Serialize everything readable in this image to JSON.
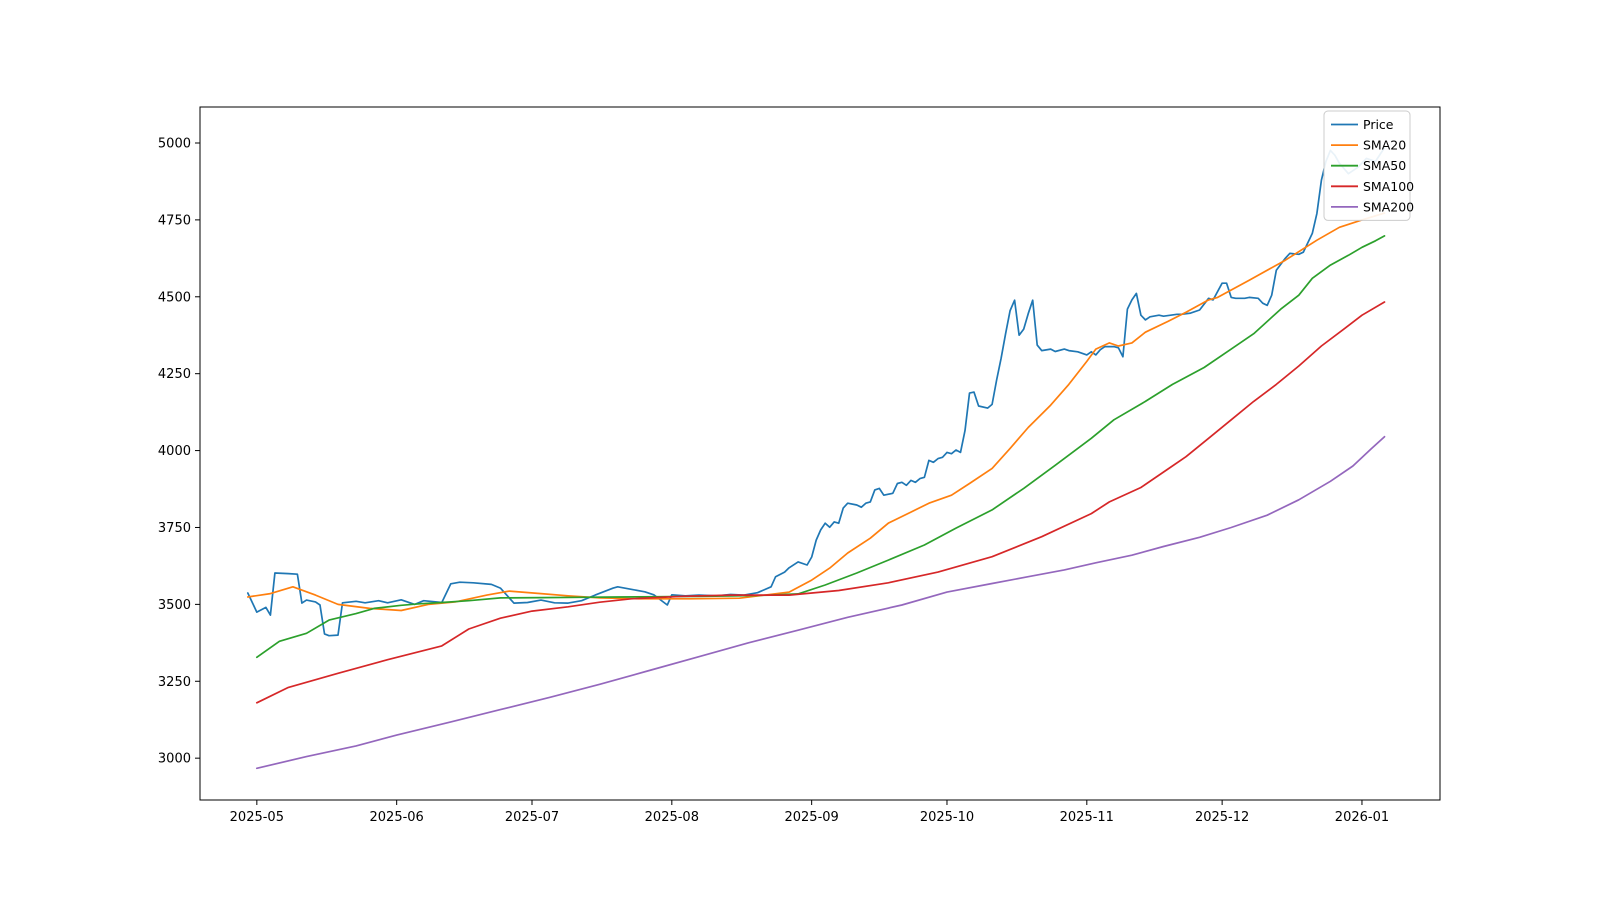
{
  "figure": {
    "background": "#ffffff"
  },
  "chart_data": {
    "type": "line",
    "title": "",
    "xlabel": "",
    "ylabel": "",
    "grid": false,
    "x_unit": "days since 2025-05-01 (day 0 = 2025-05-01)",
    "xlim_days": [
      -12.6,
      262.3
    ],
    "ylim": [
      2864,
      5117
    ],
    "x_ticks": [
      {
        "label": "2025-05",
        "day": 0
      },
      {
        "label": "2025-06",
        "day": 31
      },
      {
        "label": "2025-07",
        "day": 61
      },
      {
        "label": "2025-08",
        "day": 92
      },
      {
        "label": "2025-09",
        "day": 123
      },
      {
        "label": "2025-10",
        "day": 153
      },
      {
        "label": "2025-11",
        "day": 184
      },
      {
        "label": "2025-12",
        "day": 214
      },
      {
        "label": "2026-01",
        "day": 245
      }
    ],
    "y_ticks": [
      3000,
      3250,
      3500,
      3750,
      4000,
      4250,
      4500,
      4750,
      5000
    ],
    "legend": {
      "position": "upper right",
      "entries": [
        "Price",
        "SMA20",
        "SMA50",
        "SMA100",
        "SMA200"
      ]
    },
    "series": [
      {
        "name": "Price",
        "color": "#1f77b4",
        "points": [
          [
            -2,
            3537
          ],
          [
            0,
            3475
          ],
          [
            2,
            3490
          ],
          [
            3,
            3465
          ],
          [
            4,
            3602
          ],
          [
            7,
            3600
          ],
          [
            9,
            3598
          ],
          [
            10,
            3504
          ],
          [
            11,
            3514
          ],
          [
            13,
            3508
          ],
          [
            14,
            3498
          ],
          [
            15,
            3404
          ],
          [
            16,
            3398
          ],
          [
            18,
            3400
          ],
          [
            19,
            3505
          ],
          [
            22,
            3510
          ],
          [
            24,
            3505
          ],
          [
            27,
            3512
          ],
          [
            29,
            3505
          ],
          [
            32,
            3515
          ],
          [
            35,
            3500
          ],
          [
            37,
            3512
          ],
          [
            41,
            3506
          ],
          [
            43,
            3567
          ],
          [
            45,
            3572
          ],
          [
            48,
            3570
          ],
          [
            52,
            3565
          ],
          [
            54,
            3553
          ],
          [
            57,
            3504
          ],
          [
            60,
            3506
          ],
          [
            63,
            3514
          ],
          [
            66,
            3505
          ],
          [
            69,
            3504
          ],
          [
            72,
            3512
          ],
          [
            75,
            3530
          ],
          [
            79,
            3553
          ],
          [
            80,
            3557
          ],
          [
            83,
            3549
          ],
          [
            86,
            3541
          ],
          [
            88,
            3531
          ],
          [
            91,
            3498
          ],
          [
            92,
            3531
          ],
          [
            95,
            3528
          ],
          [
            98,
            3530
          ],
          [
            102,
            3528
          ],
          [
            105,
            3532
          ],
          [
            108,
            3530
          ],
          [
            111,
            3538
          ],
          [
            114,
            3557
          ],
          [
            115,
            3590
          ],
          [
            117,
            3605
          ],
          [
            118,
            3619
          ],
          [
            120,
            3638
          ],
          [
            122,
            3628
          ],
          [
            123,
            3654
          ],
          [
            124,
            3709
          ],
          [
            125,
            3742
          ],
          [
            126,
            3764
          ],
          [
            127,
            3751
          ],
          [
            128,
            3768
          ],
          [
            129,
            3764
          ],
          [
            130,
            3813
          ],
          [
            131,
            3829
          ],
          [
            133,
            3823
          ],
          [
            134,
            3816
          ],
          [
            135,
            3829
          ],
          [
            136,
            3833
          ],
          [
            137,
            3872
          ],
          [
            138,
            3877
          ],
          [
            139,
            3855
          ],
          [
            141,
            3861
          ],
          [
            142,
            3893
          ],
          [
            143,
            3897
          ],
          [
            144,
            3887
          ],
          [
            145,
            3903
          ],
          [
            146,
            3897
          ],
          [
            147,
            3909
          ],
          [
            148,
            3913
          ],
          [
            149,
            3968
          ],
          [
            150,
            3962
          ],
          [
            151,
            3974
          ],
          [
            152,
            3978
          ],
          [
            153,
            3994
          ],
          [
            154,
            3990
          ],
          [
            155,
            4002
          ],
          [
            156,
            3994
          ],
          [
            157,
            4065
          ],
          [
            158,
            4187
          ],
          [
            159,
            4190
          ],
          [
            160,
            4145
          ],
          [
            162,
            4138
          ],
          [
            163,
            4150
          ],
          [
            164,
            4229
          ],
          [
            165,
            4300
          ],
          [
            166,
            4380
          ],
          [
            167,
            4455
          ],
          [
            168,
            4489
          ],
          [
            169,
            4375
          ],
          [
            170,
            4395
          ],
          [
            171,
            4445
          ],
          [
            172,
            4489
          ],
          [
            173,
            4343
          ],
          [
            174,
            4325
          ],
          [
            176,
            4330
          ],
          [
            177,
            4322
          ],
          [
            179,
            4330
          ],
          [
            180,
            4325
          ],
          [
            182,
            4321
          ],
          [
            184,
            4311
          ],
          [
            185,
            4321
          ],
          [
            186,
            4311
          ],
          [
            187,
            4328
          ],
          [
            188,
            4338
          ],
          [
            190,
            4338
          ],
          [
            191,
            4334
          ],
          [
            192,
            4305
          ],
          [
            193,
            4460
          ],
          [
            194,
            4490
          ],
          [
            195,
            4511
          ],
          [
            196,
            4440
          ],
          [
            197,
            4425
          ],
          [
            198,
            4435
          ],
          [
            200,
            4440
          ],
          [
            201,
            4437
          ],
          [
            204,
            4443
          ],
          [
            205,
            4443
          ],
          [
            207,
            4447
          ],
          [
            209,
            4457
          ],
          [
            211,
            4495
          ],
          [
            212,
            4490
          ],
          [
            214,
            4544
          ],
          [
            215,
            4544
          ],
          [
            216,
            4498
          ],
          [
            217,
            4495
          ],
          [
            219,
            4495
          ],
          [
            220,
            4498
          ],
          [
            222,
            4495
          ],
          [
            223,
            4479
          ],
          [
            224,
            4472
          ],
          [
            225,
            4505
          ],
          [
            226,
            4586
          ],
          [
            228,
            4625
          ],
          [
            229,
            4641
          ],
          [
            231,
            4638
          ],
          [
            232,
            4645
          ],
          [
            234,
            4706
          ],
          [
            235,
            4771
          ],
          [
            236,
            4879
          ],
          [
            237,
            4940
          ],
          [
            238,
            4976
          ],
          [
            239,
            4960
          ],
          [
            240,
            4934
          ],
          [
            242,
            4900
          ],
          [
            244,
            4920
          ],
          [
            246,
            4950
          ],
          [
            248,
            4940
          ],
          [
            250,
            4985
          ]
        ]
      },
      {
        "name": "SMA20",
        "color": "#ff7f0e",
        "points": [
          [
            -2,
            3524
          ],
          [
            3,
            3535
          ],
          [
            8,
            3557
          ],
          [
            13,
            3530
          ],
          [
            18,
            3500
          ],
          [
            25,
            3487
          ],
          [
            32,
            3480
          ],
          [
            38,
            3500
          ],
          [
            44,
            3508
          ],
          [
            51,
            3530
          ],
          [
            56,
            3543
          ],
          [
            63,
            3535
          ],
          [
            69,
            3528
          ],
          [
            76,
            3521
          ],
          [
            85,
            3518
          ],
          [
            96,
            3518
          ],
          [
            107,
            3520
          ],
          [
            118,
            3540
          ],
          [
            123,
            3579
          ],
          [
            127,
            3618
          ],
          [
            131,
            3667
          ],
          [
            136,
            3715
          ],
          [
            140,
            3764
          ],
          [
            145,
            3800
          ],
          [
            149,
            3829
          ],
          [
            154,
            3855
          ],
          [
            158,
            3893
          ],
          [
            163,
            3942
          ],
          [
            167,
            4007
          ],
          [
            171,
            4075
          ],
          [
            176,
            4148
          ],
          [
            180,
            4215
          ],
          [
            184,
            4290
          ],
          [
            186,
            4330
          ],
          [
            189,
            4350
          ],
          [
            191,
            4340
          ],
          [
            194,
            4350
          ],
          [
            197,
            4385
          ],
          [
            202,
            4420
          ],
          [
            206,
            4450
          ],
          [
            211,
            4490
          ],
          [
            213,
            4498
          ],
          [
            220,
            4554
          ],
          [
            228,
            4619
          ],
          [
            235,
            4684
          ],
          [
            240,
            4726
          ],
          [
            245,
            4750
          ],
          [
            250,
            4772
          ]
        ]
      },
      {
        "name": "SMA50",
        "color": "#2ca02c",
        "points": [
          [
            0,
            3328
          ],
          [
            5,
            3380
          ],
          [
            11,
            3406
          ],
          [
            16,
            3449
          ],
          [
            22,
            3470
          ],
          [
            26,
            3487
          ],
          [
            32,
            3497
          ],
          [
            36,
            3502
          ],
          [
            41,
            3506
          ],
          [
            47,
            3512
          ],
          [
            54,
            3521
          ],
          [
            63,
            3522
          ],
          [
            72,
            3523
          ],
          [
            80,
            3524
          ],
          [
            89,
            3525
          ],
          [
            98,
            3526
          ],
          [
            107,
            3528
          ],
          [
            114,
            3530
          ],
          [
            120,
            3534
          ],
          [
            126,
            3563
          ],
          [
            133,
            3602
          ],
          [
            140,
            3644
          ],
          [
            148,
            3693
          ],
          [
            155,
            3748
          ],
          [
            163,
            3807
          ],
          [
            170,
            3877
          ],
          [
            177,
            3952
          ],
          [
            185,
            4040
          ],
          [
            190,
            4100
          ],
          [
            197,
            4160
          ],
          [
            203,
            4215
          ],
          [
            210,
            4270
          ],
          [
            216,
            4330
          ],
          [
            221,
            4380
          ],
          [
            227,
            4460
          ],
          [
            231,
            4505
          ],
          [
            234,
            4560
          ],
          [
            238,
            4603
          ],
          [
            242,
            4635
          ],
          [
            245,
            4661
          ],
          [
            248,
            4682
          ],
          [
            250,
            4698
          ]
        ]
      },
      {
        "name": "SMA100",
        "color": "#d62728",
        "points": [
          [
            0,
            3180
          ],
          [
            7,
            3230
          ],
          [
            18,
            3276
          ],
          [
            29,
            3320
          ],
          [
            41,
            3365
          ],
          [
            47,
            3420
          ],
          [
            54,
            3455
          ],
          [
            61,
            3478
          ],
          [
            69,
            3492
          ],
          [
            76,
            3507
          ],
          [
            83,
            3518
          ],
          [
            94,
            3526
          ],
          [
            105,
            3530
          ],
          [
            118,
            3530
          ],
          [
            129,
            3545
          ],
          [
            140,
            3570
          ],
          [
            151,
            3605
          ],
          [
            163,
            3655
          ],
          [
            174,
            3720
          ],
          [
            185,
            3795
          ],
          [
            189,
            3833
          ],
          [
            196,
            3880
          ],
          [
            202,
            3940
          ],
          [
            206,
            3980
          ],
          [
            211,
            4040
          ],
          [
            216,
            4100
          ],
          [
            221,
            4160
          ],
          [
            226,
            4215
          ],
          [
            231,
            4275
          ],
          [
            236,
            4340
          ],
          [
            241,
            4395
          ],
          [
            245,
            4440
          ],
          [
            250,
            4483
          ]
        ]
      },
      {
        "name": "SMA200",
        "color": "#9467bd",
        "points": [
          [
            0,
            2967
          ],
          [
            11,
            3005
          ],
          [
            22,
            3040
          ],
          [
            31,
            3075
          ],
          [
            43,
            3118
          ],
          [
            54,
            3158
          ],
          [
            65,
            3198
          ],
          [
            76,
            3240
          ],
          [
            87,
            3285
          ],
          [
            98,
            3330
          ],
          [
            109,
            3375
          ],
          [
            120,
            3416
          ],
          [
            131,
            3458
          ],
          [
            143,
            3498
          ],
          [
            153,
            3540
          ],
          [
            163,
            3568
          ],
          [
            171,
            3590
          ],
          [
            179,
            3612
          ],
          [
            186,
            3635
          ],
          [
            194,
            3660
          ],
          [
            201,
            3688
          ],
          [
            209,
            3718
          ],
          [
            216,
            3750
          ],
          [
            224,
            3790
          ],
          [
            231,
            3840
          ],
          [
            238,
            3900
          ],
          [
            243,
            3950
          ],
          [
            247,
            4005
          ],
          [
            250,
            4045
          ]
        ]
      }
    ]
  }
}
